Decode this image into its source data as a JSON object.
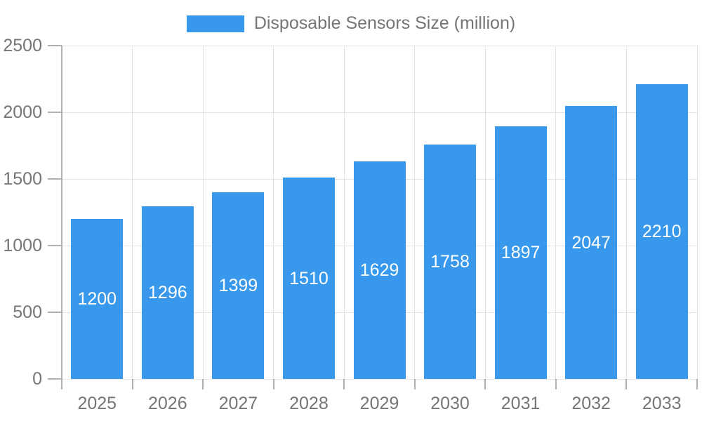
{
  "legend": {
    "label": "Disposable Sensors Size (million)"
  },
  "chart_data": {
    "type": "bar",
    "title": "",
    "series_name": "Disposable Sensors Size (million)",
    "categories": [
      "2025",
      "2026",
      "2027",
      "2028",
      "2029",
      "2030",
      "2031",
      "2032",
      "2033"
    ],
    "values": [
      1200,
      1296,
      1399,
      1510,
      1629,
      1758,
      1897,
      2047,
      2210
    ],
    "yticks": [
      0,
      500,
      1000,
      1500,
      2000,
      2500
    ],
    "ylim": [
      0,
      2500
    ],
    "xlabel": "",
    "ylabel": "",
    "grid": true,
    "legend_position": "top-center",
    "value_labels": "inside-center",
    "colors": {
      "bar": "#3899ec",
      "value_label": "#ffffff",
      "axis_text": "#757575",
      "axis_line": "#b0b0b0",
      "grid_line": "#e3e3e3",
      "background": "#ffffff"
    }
  }
}
